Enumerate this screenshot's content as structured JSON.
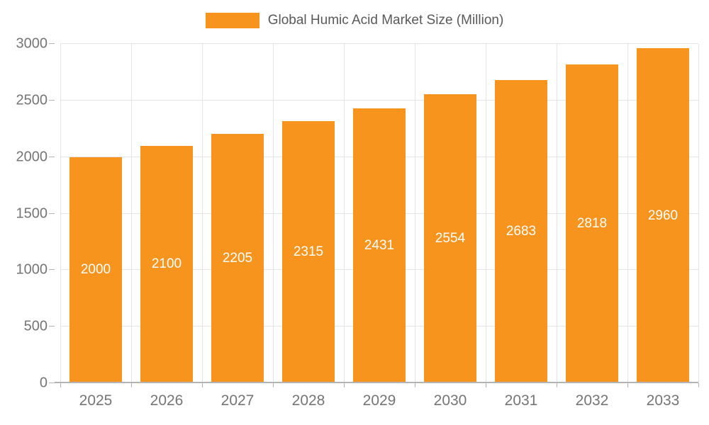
{
  "chart_data": {
    "type": "bar",
    "title": "Global Humic Acid Market Size (Million)",
    "categories": [
      "2025",
      "2026",
      "2027",
      "2028",
      "2029",
      "2030",
      "2031",
      "2032",
      "2033"
    ],
    "values": [
      2000,
      2100,
      2205,
      2315,
      2431,
      2554,
      2683,
      2818,
      2960
    ],
    "xlabel": "",
    "ylabel": "",
    "ylim": [
      0,
      3000
    ],
    "ytick_step": 500,
    "grid": true,
    "legend_position": "top",
    "legend_entries": [
      "Global Humic Acid Market Size (Million)"
    ]
  },
  "colors": {
    "bar": "#F7941E",
    "bar_value_label": "#ffffff",
    "axis_text": "#757575",
    "legend_text": "#595959",
    "gridline": "#e4e4e4",
    "axis_line": "#b3b3b3",
    "background": "#ffffff"
  }
}
